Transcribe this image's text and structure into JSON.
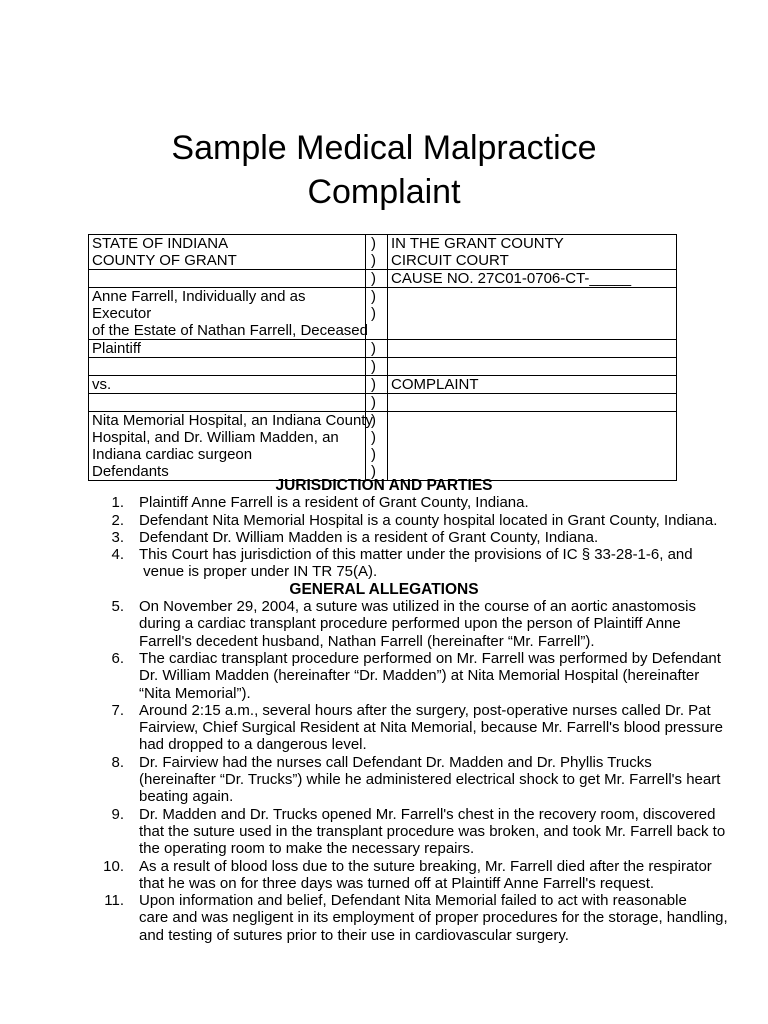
{
  "title": {
    "lines": [
      "Sample Medical Malpractice",
      "Complaint"
    ]
  },
  "caption_table": {
    "rows": [
      {
        "left": [
          "STATE OF INDIANA",
          "COUNTY OF GRANT"
        ],
        "mid": [
          ")",
          ")"
        ],
        "right": [
          "IN THE GRANT COUNTY",
          "CIRCUIT COURT"
        ]
      },
      {
        "left": [],
        "mid": [
          ")"
        ],
        "right": [
          "CAUSE NO. 27C01-0706-CT-_____"
        ]
      },
      {
        "left": [
          "Anne Farrell, Individually and as",
          "Executor",
          "of the Estate of Nathan Farrell, Deceased"
        ],
        "mid": [
          ")",
          ")"
        ],
        "right": []
      },
      {
        "left": [
          "Plaintiff"
        ],
        "mid": [
          ")"
        ],
        "right": []
      },
      {
        "left": [],
        "mid": [
          ")"
        ],
        "right": []
      },
      {
        "left": [
          "vs."
        ],
        "mid": [
          ")"
        ],
        "right": [
          "COMPLAINT"
        ]
      },
      {
        "left": [],
        "mid": [
          ")"
        ],
        "right": []
      },
      {
        "left": [
          "Nita Memorial Hospital, an Indiana County",
          "Hospital, and Dr. William Madden, an",
          "Indiana cardiac surgeon",
          "Defendants"
        ],
        "mid": [
          ")",
          ")",
          ")",
          ")"
        ],
        "right": []
      }
    ]
  },
  "sections": [
    {
      "heading": "JURISDICTION AND PARTIES",
      "items": [
        {
          "num": "1.",
          "lines": [
            "Plaintiff Anne Farrell is a resident of Grant County, Indiana."
          ]
        },
        {
          "num": "2.",
          "lines": [
            "Defendant Nita Memorial Hospital is a county hospital located in Grant County, Indiana."
          ]
        },
        {
          "num": "3.",
          "lines": [
            "Defendant Dr. William Madden is a resident of Grant County, Indiana."
          ]
        },
        {
          "num": "4.",
          "lines": [
            "This Court has jurisdiction of this matter under the provisions of IC § 33-28-1-6, and",
            " venue is proper under IN TR 75(A)."
          ]
        }
      ]
    },
    {
      "heading": "GENERAL ALLEGATIONS",
      "items": [
        {
          "num": "5.",
          "lines": [
            "On November 29, 2004, a suture was utilized in the course of an aortic anastomosis",
            "during a cardiac transplant procedure performed upon the person of Plaintiff Anne",
            "Farrell's decedent husband, Nathan Farrell (hereinafter “Mr. Farrell”)."
          ]
        },
        {
          "num": "6.",
          "lines": [
            "The cardiac transplant procedure performed on Mr. Farrell was performed by Defendant",
            "Dr. William Madden (hereinafter “Dr. Madden”) at Nita Memorial Hospital (hereinafter",
            "“Nita Memorial”)."
          ]
        },
        {
          "num": "7.",
          "lines": [
            "Around 2:15 a.m., several hours after the surgery, post-operative nurses called Dr. Pat",
            "Fairview, Chief Surgical Resident at Nita Memorial, because Mr. Farrell's blood pressure",
            "had dropped to a dangerous level."
          ]
        },
        {
          "num": "8.",
          "lines": [
            "Dr. Fairview had the nurses call Defendant Dr. Madden and Dr. Phyllis Trucks",
            "(hereinafter “Dr. Trucks”) while he administered electrical shock to get Mr. Farrell's heart",
            "beating again."
          ]
        },
        {
          "num": "9.",
          "lines": [
            "Dr. Madden and Dr. Trucks opened Mr. Farrell's chest in the recovery room, discovered",
            "that the suture used in the transplant procedure was broken, and took Mr. Farrell back to",
            "the operating room to make the necessary repairs."
          ]
        },
        {
          "num": "10.",
          "lines": [
            "As a result of blood loss due to the suture breaking, Mr. Farrell died after the respirator",
            "that he was on for three days was turned off at Plaintiff Anne Farrell's request."
          ]
        },
        {
          "num": "11.",
          "lines": [
            "Upon information and belief, Defendant Nita Memorial failed to act with reasonable",
            "care and was negligent in its employment of proper procedures for the storage, handling,",
            "and testing of sutures prior to their use in cardiovascular surgery."
          ]
        }
      ]
    }
  ]
}
